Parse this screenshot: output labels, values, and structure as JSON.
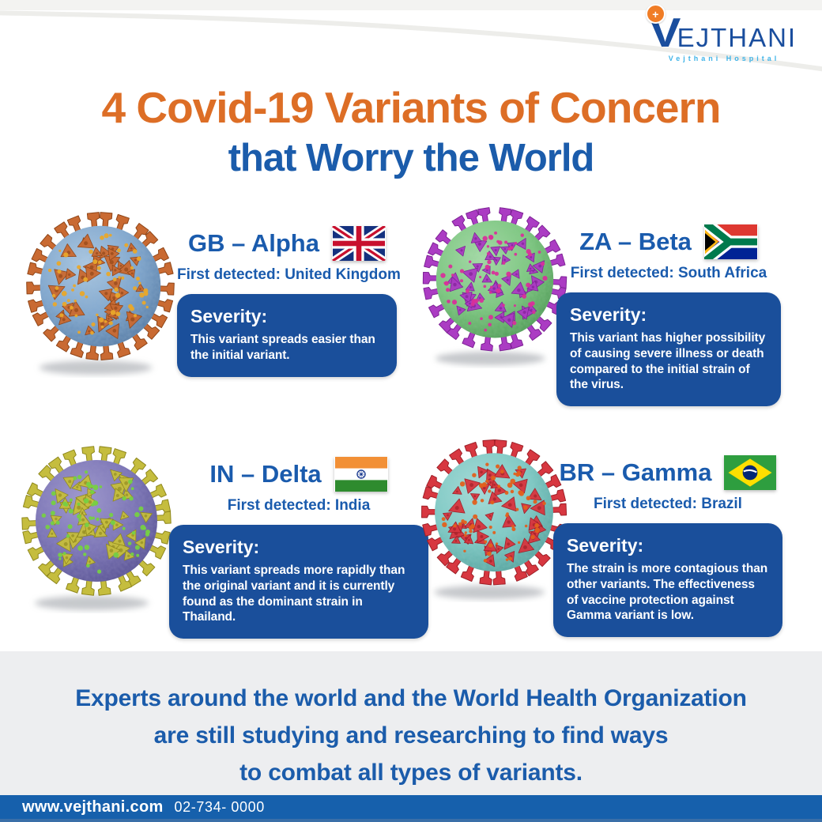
{
  "colors": {
    "title_orange": "#DD6E26",
    "title_blue": "#1B5CAB",
    "text_blue": "#1A5BAD",
    "severity_box": "#1A4F9B",
    "severity_text": "#FFFFFF",
    "band_gray": "#EDEEF0",
    "footer_bar": "#1660AC",
    "footer_strip": "#3A6FA8",
    "logo_blue": "#1A4E9E",
    "logo_light_blue": "#3FB3E8",
    "logo_cross_orange": "#F07D26"
  },
  "header": {
    "brand_v": "V",
    "brand_rest": "EJTHANI",
    "brand_subtitle": "Vejthani Hospital"
  },
  "title": {
    "line1": "4 Covid-19 Variants of Concern",
    "line2": "that Worry the World"
  },
  "variants": [
    {
      "name": "GB – Alpha",
      "flag": "United Kingdom",
      "detected": "First detected: United Kingdom",
      "severity_label": "Severity:",
      "severity_text": "This variant spreads easier than the initial variant.",
      "virus": {
        "body": "#7FA6CE",
        "body_light": "#AFCBE4",
        "body_dark": "#4F749E",
        "spike": "#C96A32",
        "spike_dark": "#8F4517",
        "dot": "#E9A82A"
      }
    },
    {
      "name": "ZA – Beta",
      "flag": "South Africa",
      "detected": "First detected: South Africa",
      "severity_label": "Severity:",
      "severity_text": "This variant has higher possibility of causing severe illness or death compared to the initial strain of the virus.",
      "virus": {
        "body": "#7CC77F",
        "body_light": "#A8DCAA",
        "body_dark": "#48934F",
        "spike": "#AB3CC3",
        "spike_dark": "#7C2194",
        "dot": "#D8309A"
      }
    },
    {
      "name": "IN – Delta",
      "flag": "India",
      "detected": "First detected: India",
      "severity_label": "Severity:",
      "severity_text": "This variant spreads more rapidly than the original variant and it is currently found as the dominant strain in Thailand.",
      "virus": {
        "body": "#7A73B5",
        "body_light": "#A09ACF",
        "body_dark": "#514B8C",
        "spike": "#C5BD3E",
        "spike_dark": "#8F881E",
        "dot": "#76D043"
      }
    },
    {
      "name": "BR – Gamma",
      "flag": "Brazil",
      "detected": "First detected: Brazil",
      "severity_label": "Severity:",
      "severity_text": "The strain is more contagious than other variants. The effectiveness of vaccine protection against Gamma variant is low.",
      "virus": {
        "body": "#7EC9C4",
        "body_light": "#A9DEDA",
        "body_dark": "#4C9B96",
        "spike": "#D73740",
        "spike_dark": "#9C1E26",
        "dot": "#E2601C"
      }
    }
  ],
  "message": {
    "line1": "Experts around the world and the World Health Organization",
    "line2": "are still studying and researching to find ways",
    "line3": "to combat all types of variants."
  },
  "footer": {
    "website": "www.vejthani.com",
    "phone": "02-734- 0000"
  }
}
